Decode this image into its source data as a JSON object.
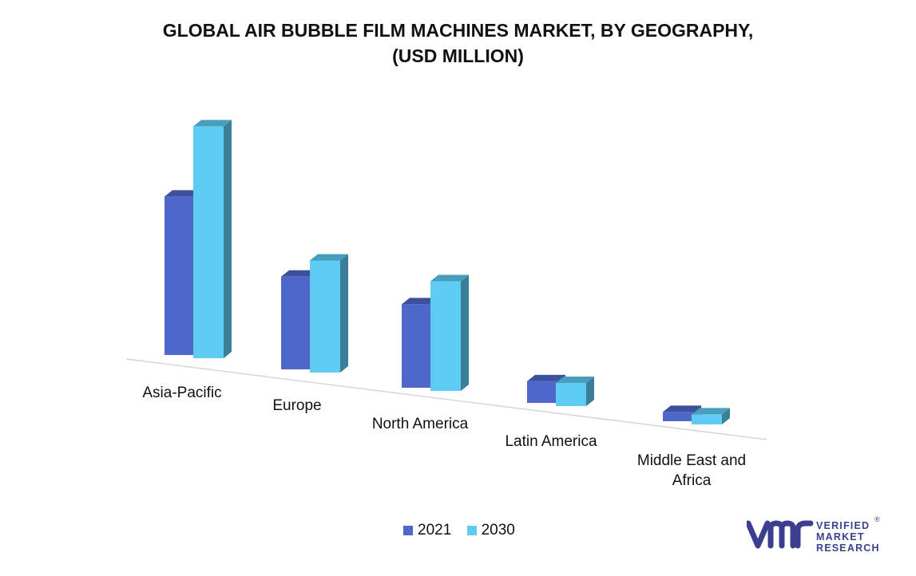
{
  "chart_data": {
    "type": "bar",
    "title_line1": "GLOBAL AIR BUBBLE FILM MACHINES MARKET, BY GEOGRAPHY,",
    "title_line2": "(USD MILLION)",
    "categories": [
      "Asia-Pacific",
      "Europe",
      "North America",
      "Latin America",
      "Middle East and Africa"
    ],
    "category_label_lines": [
      [
        "Asia-Pacific"
      ],
      [
        "Europe"
      ],
      [
        "North America"
      ],
      [
        "Latin America"
      ],
      [
        "Middle East and",
        "Africa"
      ]
    ],
    "series": [
      {
        "name": "2021",
        "values": [
          205,
          120,
          108,
          28,
          12
        ],
        "color": "#4e67c8"
      },
      {
        "name": "2030",
        "values": [
          300,
          145,
          142,
          30,
          13
        ],
        "color": "#5ecbf3"
      }
    ],
    "ylim": [
      0,
      320
    ],
    "grid": false,
    "legend_position": "bottom",
    "three_d": true
  },
  "legend": {
    "item1": "2021",
    "item2": "2030"
  },
  "branding": {
    "line1": "VERIFIED",
    "line2": "MARKET",
    "line3": "RESEARCH",
    "registered": "®",
    "color": "#3c3f8f"
  }
}
